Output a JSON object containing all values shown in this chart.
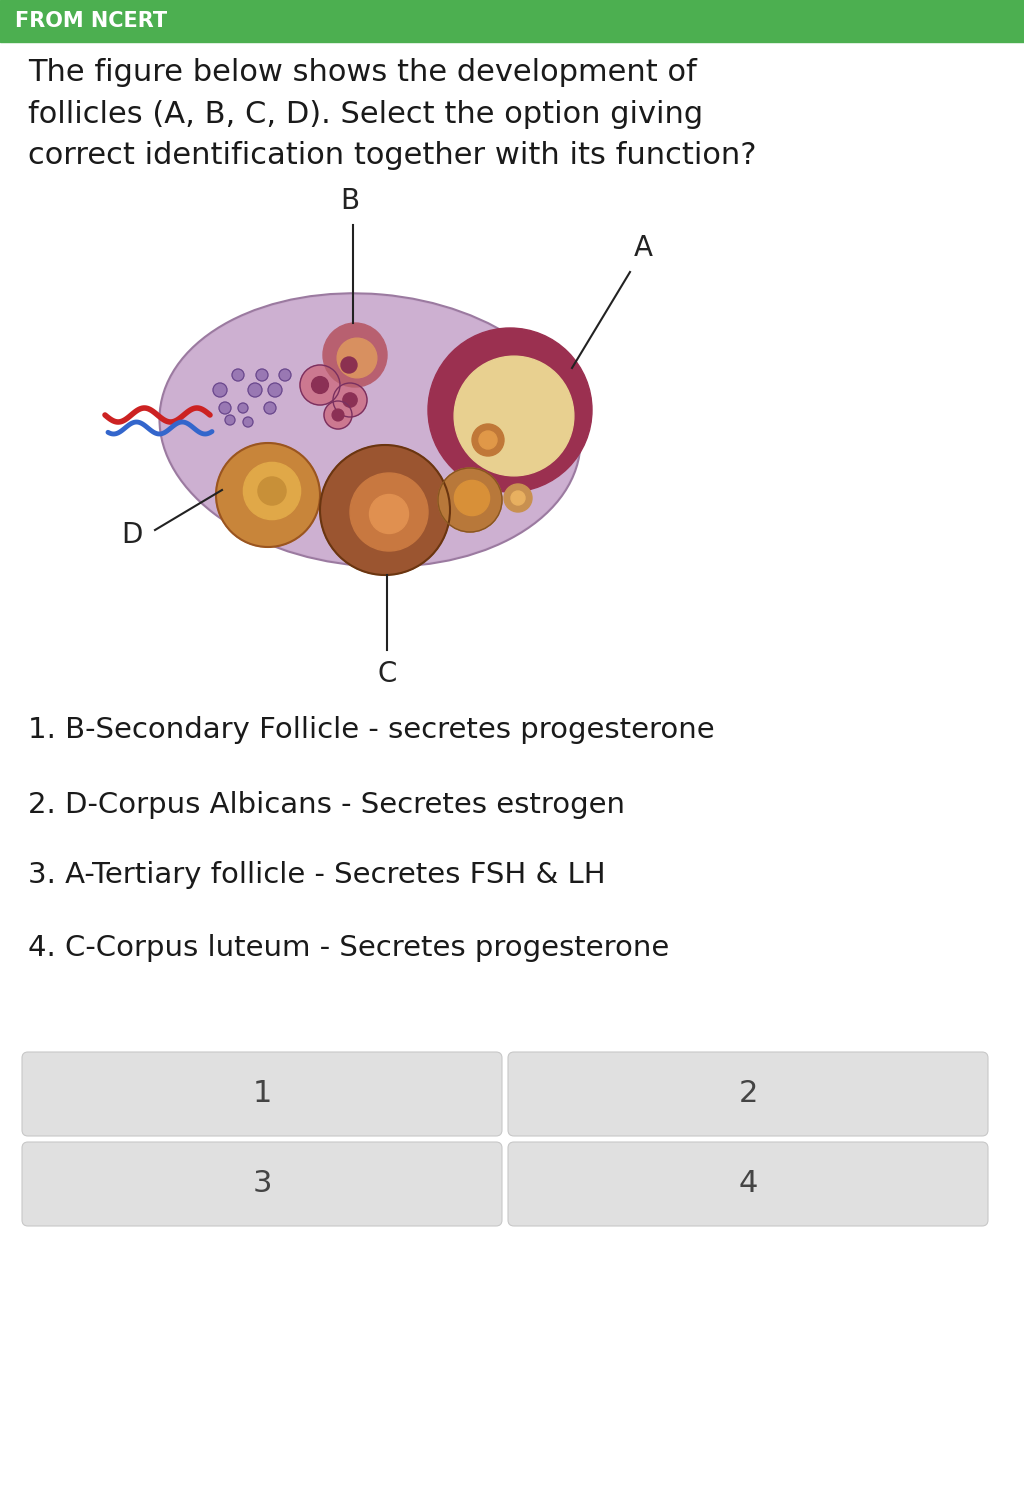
{
  "bg_color": "#ffffff",
  "header_bg": "#4CAF50",
  "header_text": "FROM NCERT",
  "header_text_color": "#ffffff",
  "question_text": "The figure below shows the development of\nfollicles (A, B, C, D). Select the option giving\ncorrect identification together with its function?",
  "question_fontsize": 22,
  "question_color": "#1a1a1a",
  "options": [
    "1. B-Secondary Follicle - secretes progesterone",
    "2. D-Corpus Albicans - Secretes estrogen",
    "3. A-Tertiary follicle - Secretes FSH & LH",
    "4. C-Corpus luteum - Secretes progesterone"
  ],
  "option_fontsize": 21,
  "option_color": "#1a1a1a",
  "button_labels": [
    "1",
    "2",
    "3",
    "4"
  ],
  "button_bg": "#e0e0e0",
  "button_text_color": "#444444",
  "button_fontsize": 22,
  "label_fontsize": 18,
  "label_color": "#222222"
}
